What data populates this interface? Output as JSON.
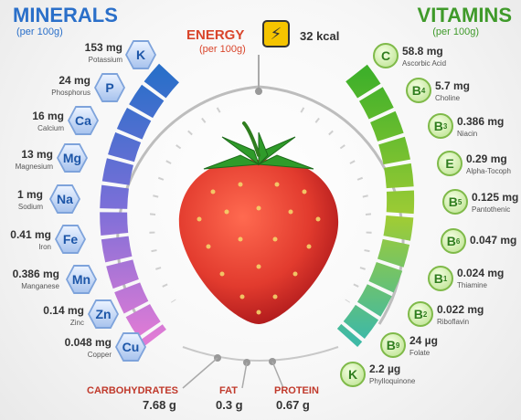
{
  "minerals": {
    "title": "MINERALS",
    "subtitle": "(per 100g)",
    "items": [
      {
        "symbol": "K",
        "value": "153 mg",
        "name": "Potassium"
      },
      {
        "symbol": "P",
        "value": "24 mg",
        "name": "Phosphorus"
      },
      {
        "symbol": "Ca",
        "value": "16 mg",
        "name": "Calcium"
      },
      {
        "symbol": "Mg",
        "value": "13 mg",
        "name": "Magnesium"
      },
      {
        "symbol": "Na",
        "value": "1 mg",
        "name": "Sodium"
      },
      {
        "symbol": "Fe",
        "value": "0.41 mg",
        "name": "Iron"
      },
      {
        "symbol": "Mn",
        "value": "0.386 mg",
        "name": "Manganese"
      },
      {
        "symbol": "Zn",
        "value": "0.14 mg",
        "name": "Zinc"
      },
      {
        "symbol": "Cu",
        "value": "0.048 mg",
        "name": "Copper"
      }
    ]
  },
  "vitamins": {
    "title": "VITAMINS",
    "subtitle": "(per 100g)",
    "items": [
      {
        "letter": "C",
        "sub": "",
        "value": "58.8 mg",
        "name": "Ascorbic Acid"
      },
      {
        "letter": "B",
        "sub": "4",
        "value": "5.7 mg",
        "name": "Choline"
      },
      {
        "letter": "B",
        "sub": "3",
        "value": "0.386 mg",
        "name": "Niacin"
      },
      {
        "letter": "E",
        "sub": "",
        "value": "0.29 mg",
        "name": "Alpha-Tocoph"
      },
      {
        "letter": "B",
        "sub": "5",
        "value": "0.125 mg",
        "name": "Pantothenic"
      },
      {
        "letter": "B",
        "sub": "6",
        "value": "0.047 mg",
        "name": ""
      },
      {
        "letter": "B",
        "sub": "1",
        "value": "0.024 mg",
        "name": "Thiamine"
      },
      {
        "letter": "B",
        "sub": "2",
        "value": "0.022 mg",
        "name": "Riboflavin"
      },
      {
        "letter": "B",
        "sub": "9",
        "value": "24 µg",
        "name": "Folate"
      },
      {
        "letter": "K",
        "sub": "",
        "value": "2.2 µg",
        "name": "Phylloquinone"
      }
    ]
  },
  "energy": {
    "label": "ENERGY",
    "subtitle": "(per 100g)",
    "value": "32 kcal"
  },
  "macros": [
    {
      "label": "CARBOHYDRATES",
      "value": "7.68 g"
    },
    {
      "label": "FAT",
      "value": "0.3 g"
    },
    {
      "label": "PROTEIN",
      "value": "0.67 g"
    }
  ],
  "colors": {
    "minerals_top": "#2a6fc9",
    "minerals_bottom": "#e07bd5",
    "vitamins_top": "#3f9a2a",
    "vitamins_bottom": "#43b9a5",
    "energy": "#d9452b",
    "strawberry": "#e23b2e"
  },
  "icons": {
    "energy": "lightning-icon",
    "fruit": "strawberry-illustration"
  }
}
